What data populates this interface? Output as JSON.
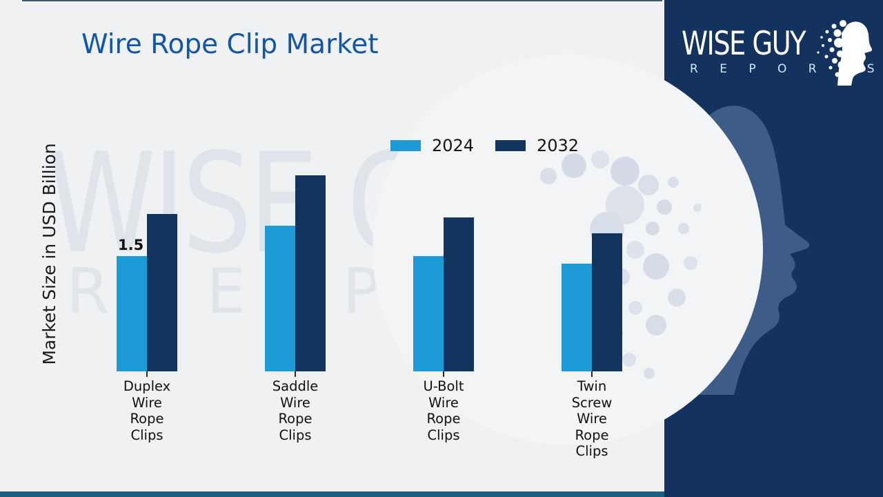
{
  "title": "Wire Rope Clip Market",
  "y_axis_label": "Market Size in USD Billion",
  "legend": [
    {
      "label": "2024",
      "color": "#1b9ad6"
    },
    {
      "label": "2032",
      "color": "#12355f"
    }
  ],
  "watermark": {
    "line1": "WISE GUY",
    "line2": "R E P O R T S"
  },
  "logo": {
    "line1": "WISE GUY",
    "line2": "R E P O R T S"
  },
  "colors": {
    "bar_2024": "#1b9ad6",
    "bar_2032": "#12355f",
    "navy_panel": "#13325e",
    "face_silhouette": "#3d5c88",
    "teal_strip": "#1d5f80",
    "title_blue": "#1356a6",
    "watermark_gray": "#dfe3ea",
    "background": "#f0f1f3"
  },
  "chart_data": {
    "type": "bar",
    "title": "Wire Rope Clip Market",
    "ylabel": "Market Size in USD Billion",
    "xlabel": "",
    "ylim": [
      0,
      3
    ],
    "grid": false,
    "legend_position": "top-center",
    "categories": [
      "Duplex Wire Rope Clips",
      "Saddle Wire Rope Clips",
      "U-Bolt Wire Rope Clips",
      "Twin Screw Wire Rope Clips"
    ],
    "category_lines": [
      [
        "Duplex",
        "Wire",
        "Rope",
        "Clips"
      ],
      [
        "Saddle",
        "Wire",
        "Rope",
        "Clips"
      ],
      [
        "U-Bolt",
        "Wire",
        "Rope",
        "Clips"
      ],
      [
        "Twin",
        "Screw",
        "Wire",
        "Rope",
        "Clips"
      ]
    ],
    "series": [
      {
        "name": "2024",
        "values": [
          1.5,
          1.9,
          1.5,
          1.4
        ]
      },
      {
        "name": "2032",
        "values": [
          2.05,
          2.55,
          2.0,
          1.8
        ]
      }
    ],
    "annotations": [
      {
        "text": "1.5",
        "category_index": 0,
        "series_index": 0
      }
    ]
  }
}
